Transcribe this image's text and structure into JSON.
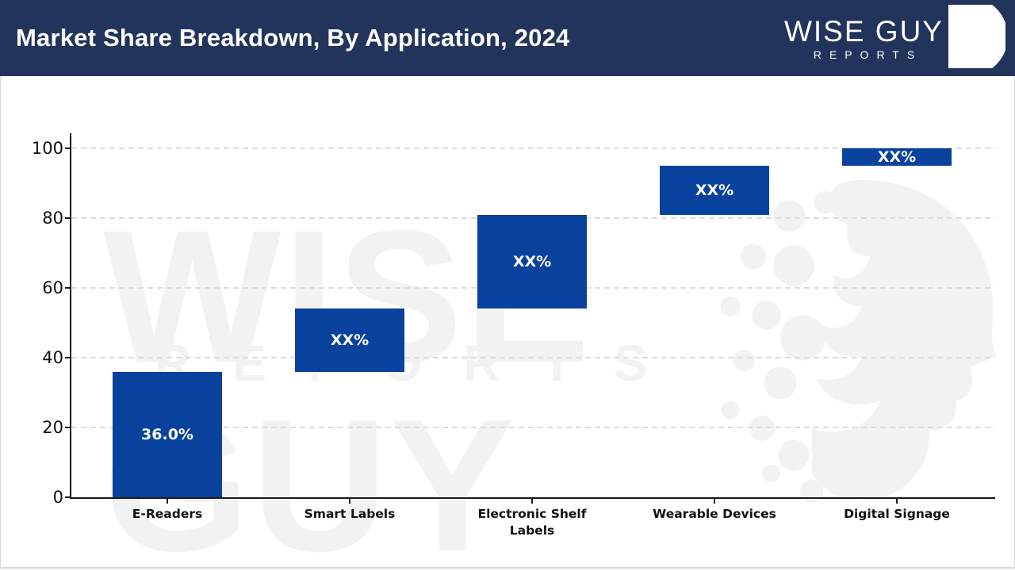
{
  "header": {
    "title": "Market Share Breakdown, By Application, 2024",
    "background_color": "#22345C",
    "logo": {
      "line1": "WISE GUY",
      "line2": "REPORTS"
    }
  },
  "watermark": {
    "line1": "WISE GUY",
    "line2": "REPORTS"
  },
  "chart_data": {
    "type": "bar",
    "subtype": "waterfall",
    "title": "Market Share Breakdown, By Application, 2024",
    "categories": [
      "E-Readers",
      "Smart Labels",
      "Electronic Shelf\nLabels",
      "Wearable Devices",
      "Digital Signage"
    ],
    "segments": [
      {
        "category": "E-Readers",
        "start": 0,
        "end": 36,
        "value": 36,
        "label": "36.0%"
      },
      {
        "category": "Smart Labels",
        "start": 36,
        "end": 54,
        "value": 18,
        "label": "XX%"
      },
      {
        "category": "Electronic Shelf Labels",
        "start": 54,
        "end": 81,
        "value": 27,
        "label": "XX%"
      },
      {
        "category": "Wearable Devices",
        "start": 81,
        "end": 95,
        "value": 14,
        "label": "XX%"
      },
      {
        "category": "Digital Signage",
        "start": 95,
        "end": 100,
        "value": 5,
        "label": "XX%"
      }
    ],
    "yticks": [
      0,
      20,
      40,
      60,
      80,
      100
    ],
    "ylim": [
      0,
      105
    ],
    "xlabel": "",
    "ylabel": "",
    "bar_color": "#08429D",
    "grid": "horizontal dashed",
    "legend": "none"
  }
}
